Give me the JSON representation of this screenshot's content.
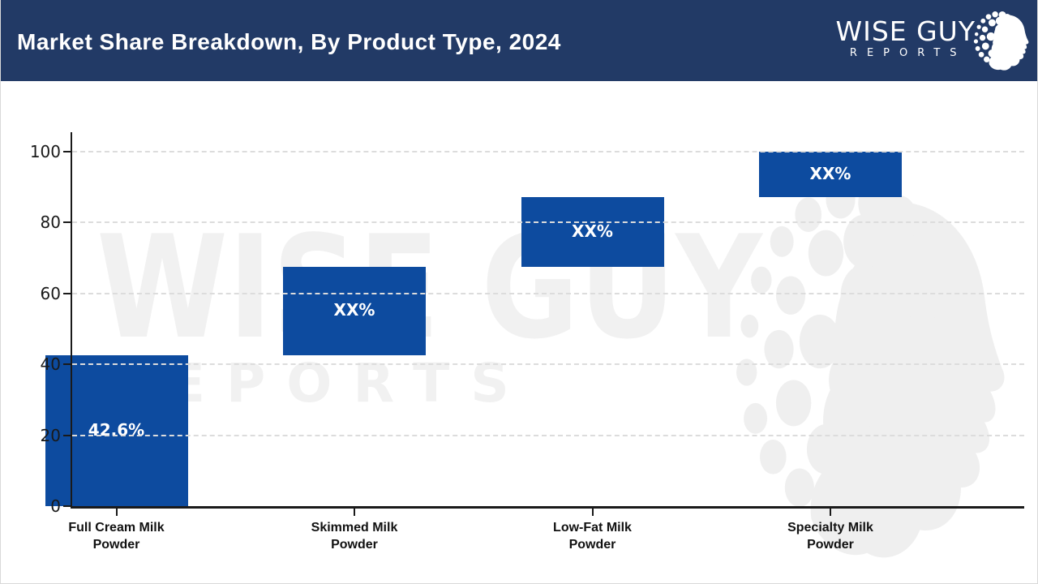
{
  "header": {
    "title": "Market Share Breakdown, By Product Type, 2024",
    "logo": {
      "line1": "WISE GUY",
      "line2": "REPORTS"
    }
  },
  "watermark": {
    "line1": "WISE GUY",
    "line2": "REPORTS"
  },
  "colors": {
    "header_background": "#223a66",
    "bar_blue": "#0d4b9f",
    "bar_label_text": "#ffffff",
    "watermark_gray": "#f1f1f1",
    "gridline_gray": "#dcdcdc",
    "axis_black": "#1a1a1a"
  },
  "chart_data": {
    "type": "bar",
    "subtype": "waterfall",
    "title": "Market Share Breakdown, By Product Type, 2024",
    "categories": [
      "Full Cream Milk\nPowder",
      "Skimmed Milk\nPowder",
      "Low-Fat Milk\nPowder",
      "Specialty Milk\nPowder"
    ],
    "segments": [
      {
        "category": "Full Cream Milk Powder",
        "from": 0,
        "to": 42.6,
        "label": "42.6%"
      },
      {
        "category": "Skimmed Milk Powder",
        "from": 42.6,
        "to": 67.5,
        "label": "XX%"
      },
      {
        "category": "Low-Fat Milk Powder",
        "from": 67.5,
        "to": 87,
        "label": "XX%"
      },
      {
        "category": "Specialty Milk Powder",
        "from": 87,
        "to": 100,
        "label": "XX%"
      }
    ],
    "xlabel": "",
    "ylabel": "",
    "yticks": [
      0,
      20,
      40,
      60,
      80,
      100
    ],
    "ylim": [
      0,
      105.4
    ],
    "grid": "horizontal-dashed",
    "legend": "none",
    "bar_color": "#0d4b9f",
    "bar_value_color": "#ffffff"
  }
}
